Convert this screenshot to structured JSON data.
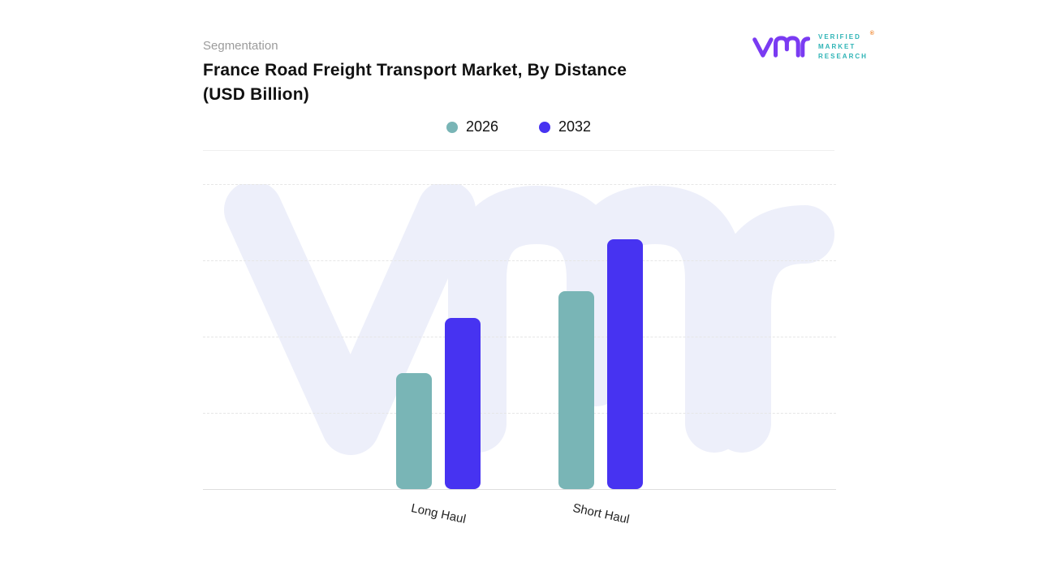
{
  "header": {
    "eyebrow": "Segmentation",
    "title_line1": "France Road Freight Transport Market, By Distance",
    "title_line2": "(USD Billion)"
  },
  "logo": {
    "monogram_color": "#7a3bf2",
    "text_color": "#2eb4b6",
    "registered_mark": "®",
    "registered_color": "#f08328",
    "lines": [
      "VERIFIED",
      "MARKET",
      "RESEARCH"
    ]
  },
  "legend": {
    "items": [
      {
        "label": "2026",
        "color": "#79b5b6"
      },
      {
        "label": "2032",
        "color": "#4733f1"
      }
    ]
  },
  "chart_data": {
    "type": "bar",
    "title": "France Road Freight Transport Market, By Distance (USD Billion)",
    "categories": [
      "Long Haul",
      "Short Haul"
    ],
    "series": [
      {
        "name": "2026",
        "color": "#79b5b6",
        "values": [
          38,
          65
        ]
      },
      {
        "name": "2032",
        "color": "#4733f1",
        "values": [
          56,
          82
        ]
      }
    ],
    "xlabel": "",
    "ylabel": "",
    "ylim": [
      0,
      100
    ],
    "grid": "horizontal-dashed",
    "legend_position": "top-center",
    "value_axis_labels_visible": false
  },
  "watermark": {
    "color": "#edeffa"
  }
}
